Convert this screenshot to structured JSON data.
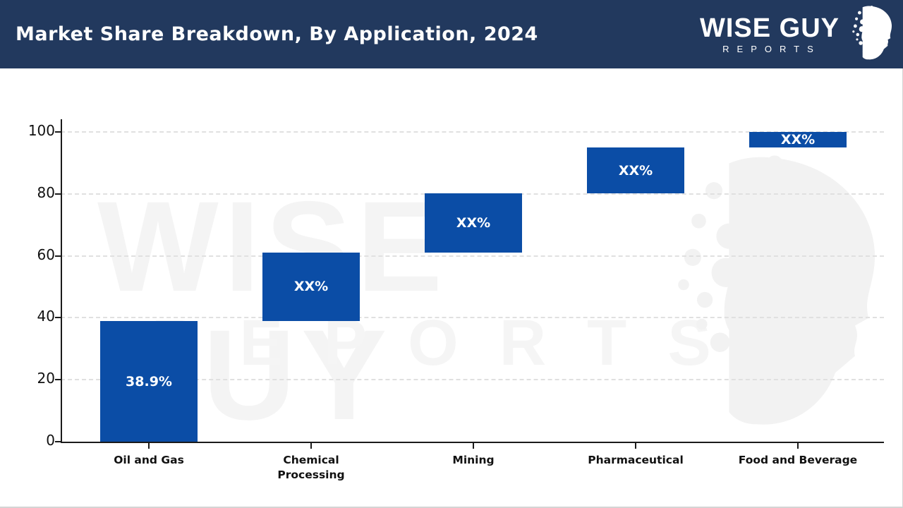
{
  "header": {
    "title": "Market Share Breakdown, By Application, 2024",
    "bg_color": "#22395e",
    "logo": {
      "line1": "WISE GUY",
      "line2": "REPORTS"
    }
  },
  "watermark": {
    "line1": "WISE GUY",
    "line2": "REPORTS"
  },
  "chart_data": {
    "type": "bar",
    "subtype": "waterfall",
    "title": "Market Share Breakdown, By Application, 2024",
    "categories": [
      "Oil and Gas",
      "Chemical Processing",
      "Mining",
      "Pharmaceutical",
      "Food and Beverage"
    ],
    "x_labels": [
      "Oil and Gas",
      "Chemical\nProcessing",
      "Mining",
      "Pharmaceutical",
      "Food and Beverage"
    ],
    "segments": [
      {
        "category": "Oil and Gas",
        "start": 0,
        "end": 38.9,
        "label": "38.9%"
      },
      {
        "category": "Chemical Processing",
        "start": 38.9,
        "end": 61.1,
        "label": "XX%"
      },
      {
        "category": "Mining",
        "start": 61.1,
        "end": 80.1,
        "label": "XX%"
      },
      {
        "category": "Pharmaceutical",
        "start": 80.1,
        "end": 95.0,
        "label": "XX%"
      },
      {
        "category": "Food and Beverage",
        "start": 95.0,
        "end": 100.0,
        "label": "XX%"
      }
    ],
    "y_ticks": [
      0,
      20,
      40,
      60,
      80,
      100
    ],
    "ylim": [
      0,
      105
    ],
    "xlabel": "",
    "ylabel": "",
    "grid": "horizontal-dashed",
    "legend": "none",
    "bar_color": "#0b4da6",
    "bar_label_color": "#ffffff",
    "axis_color": "#1a1a1a"
  }
}
